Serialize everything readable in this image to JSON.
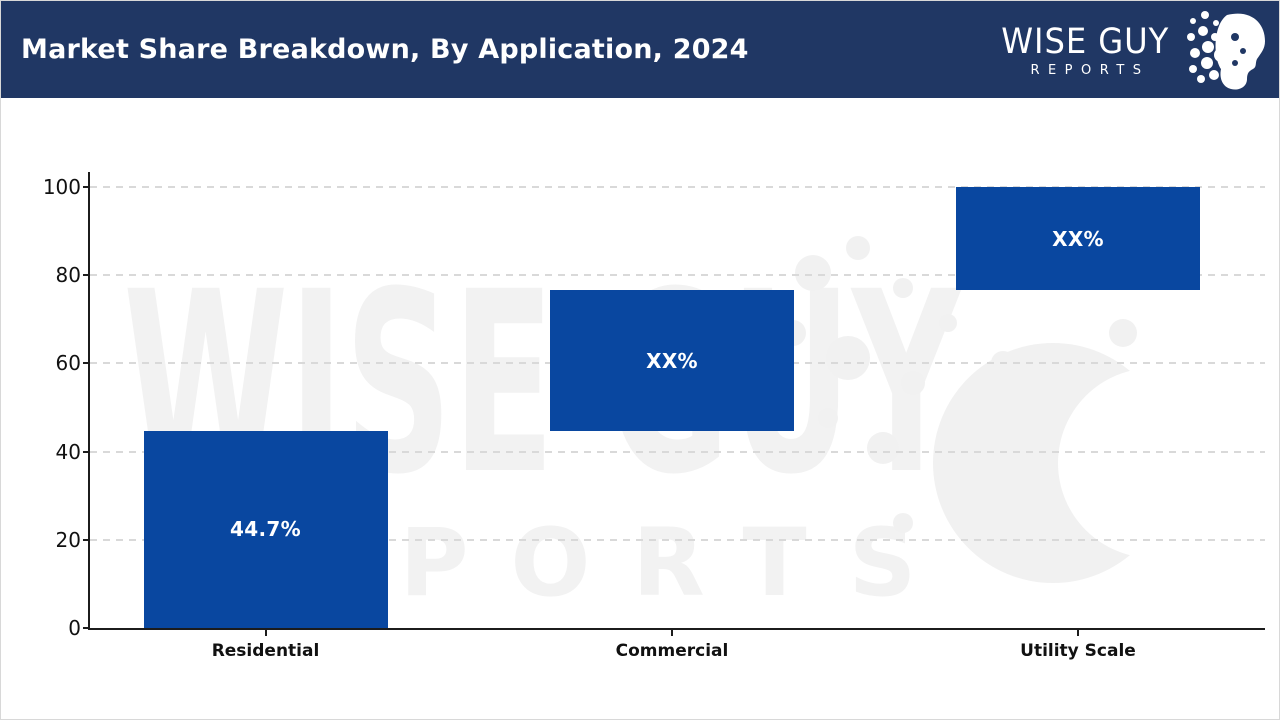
{
  "header": {
    "title": "Market Share Breakdown, By Application, 2024",
    "logo_line1": "WISE GUY",
    "logo_line2": "REPORTS"
  },
  "watermark": {
    "line1": "WISE GUY",
    "line2": "REPORTS"
  },
  "colors": {
    "header_bg": "#203764",
    "bar": "#0947a0",
    "grid": "#d9d9d9",
    "axis": "#1c1c1c",
    "bar_label": "#ffffff",
    "watermark": "#f2f2f2"
  },
  "chart_data": {
    "type": "bar",
    "subtype": "waterfall-stacked-percentage",
    "title": "Market Share Breakdown, By Application, 2024",
    "categories": [
      "Residential",
      "Commercial",
      "Utility Scale"
    ],
    "segments": [
      {
        "category": "Residential",
        "start": 0,
        "end": 44.7,
        "value": 44.7,
        "label": "44.7%"
      },
      {
        "category": "Commercial",
        "start": 44.7,
        "end": 76.6,
        "value": 31.9,
        "label": "XX%"
      },
      {
        "category": "Utility Scale",
        "start": 76.6,
        "end": 100,
        "value": 23.4,
        "label": "XX%"
      }
    ],
    "y_ticks": [
      0,
      20,
      40,
      60,
      80,
      100
    ],
    "ylim": [
      0,
      103.5
    ],
    "xlabel": "",
    "ylabel": "",
    "grid": "horizontal-dashed",
    "legend": "none",
    "bar_color": "#0947a0"
  }
}
